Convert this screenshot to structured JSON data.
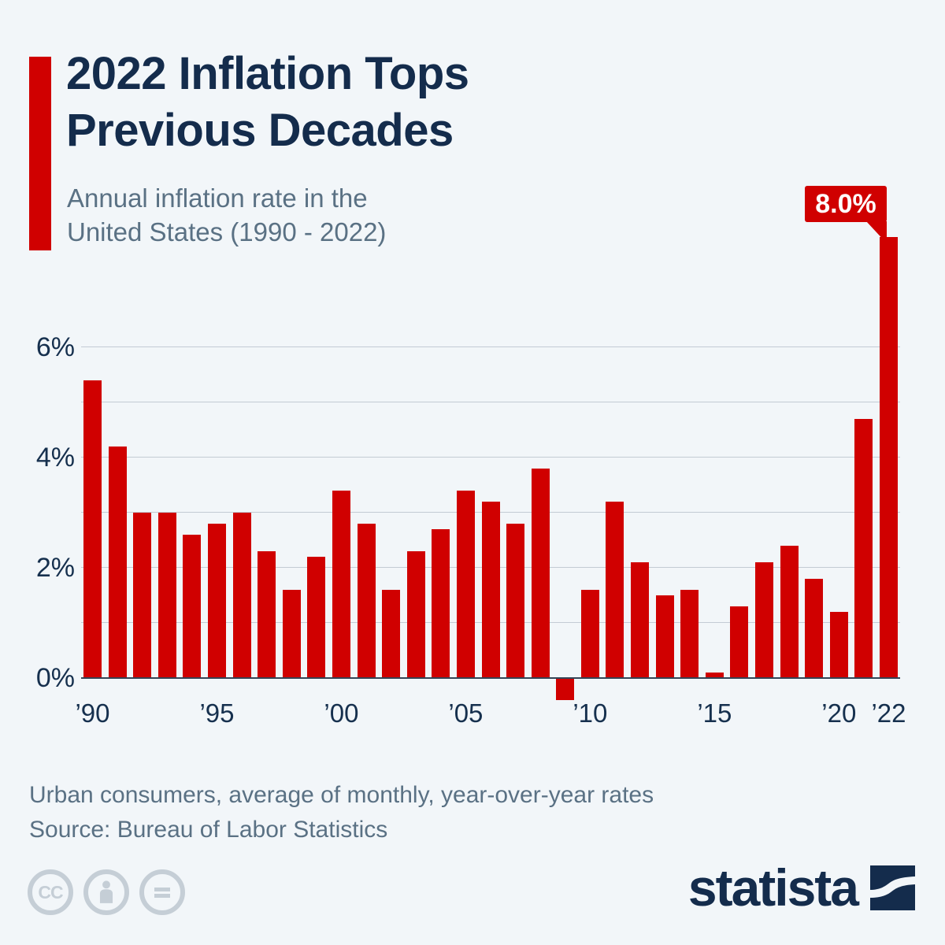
{
  "title": {
    "lines": [
      "2022 Inflation Tops",
      "Previous Decades"
    ]
  },
  "subtitle": {
    "lines": [
      "Annual inflation rate in the",
      "United States (1990 - 2022)"
    ]
  },
  "chart_data": {
    "type": "bar",
    "title": "Annual inflation rate in the United States (1990-2022)",
    "unit": "percent",
    "x": [
      1990,
      1991,
      1992,
      1993,
      1994,
      1995,
      1996,
      1997,
      1998,
      1999,
      2000,
      2001,
      2002,
      2003,
      2004,
      2005,
      2006,
      2007,
      2008,
      2009,
      2010,
      2011,
      2012,
      2013,
      2014,
      2015,
      2016,
      2017,
      2018,
      2019,
      2020,
      2021,
      2022
    ],
    "values": [
      5.4,
      4.2,
      3.0,
      3.0,
      2.6,
      2.8,
      3.0,
      2.3,
      1.6,
      2.2,
      3.4,
      2.8,
      1.6,
      2.3,
      2.7,
      3.4,
      3.2,
      2.8,
      3.8,
      -0.4,
      1.6,
      3.2,
      2.1,
      1.5,
      1.6,
      0.1,
      1.3,
      2.1,
      2.4,
      1.8,
      1.2,
      4.7,
      8.0
    ],
    "ylim": [
      -0.5,
      8.2
    ],
    "grid": "horizontal, every 1%",
    "legend": "none",
    "yticks": [
      {
        "value": 0,
        "label": "0%"
      },
      {
        "value": 2,
        "label": "2%"
      },
      {
        "value": 4,
        "label": "4%"
      },
      {
        "value": 6,
        "label": "6%"
      }
    ],
    "minor_gridlines": [
      1,
      2,
      3,
      4,
      5,
      6
    ],
    "xticks": [
      {
        "index": 0,
        "label": "’90"
      },
      {
        "index": 5,
        "label": "’95"
      },
      {
        "index": 10,
        "label": "’00"
      },
      {
        "index": 15,
        "label": "’05"
      },
      {
        "index": 20,
        "label": "’10"
      },
      {
        "index": 25,
        "label": "’15"
      },
      {
        "index": 30,
        "label": "’20"
      },
      {
        "index": 32,
        "label": "’22"
      }
    ],
    "annotation": {
      "year": 2022,
      "label": "8.0%"
    }
  },
  "footer": {
    "note": "Urban consumers, average of monthly, year-over-year rates",
    "source": "Source: Bureau of Labor Statistics"
  },
  "branding": {
    "logo_text": "statista",
    "license_badge_cc_label": "CC",
    "license_icons": [
      "cc-icon",
      "attribution-person-icon",
      "equals-icon"
    ]
  },
  "colors": {
    "background": "#f2f6f9",
    "bar": "#d00000",
    "accent_bar": "#d00000",
    "callout_bg": "#d00000",
    "callout_text": "#ffffff",
    "title_text": "#142c4c",
    "subtitle_text": "#5a7184",
    "axis_text": "#16304e",
    "gridline": "#c3cbd4",
    "axis_line": "#344456",
    "license_icon": "#c5ced6",
    "logo": "#142c4c"
  }
}
